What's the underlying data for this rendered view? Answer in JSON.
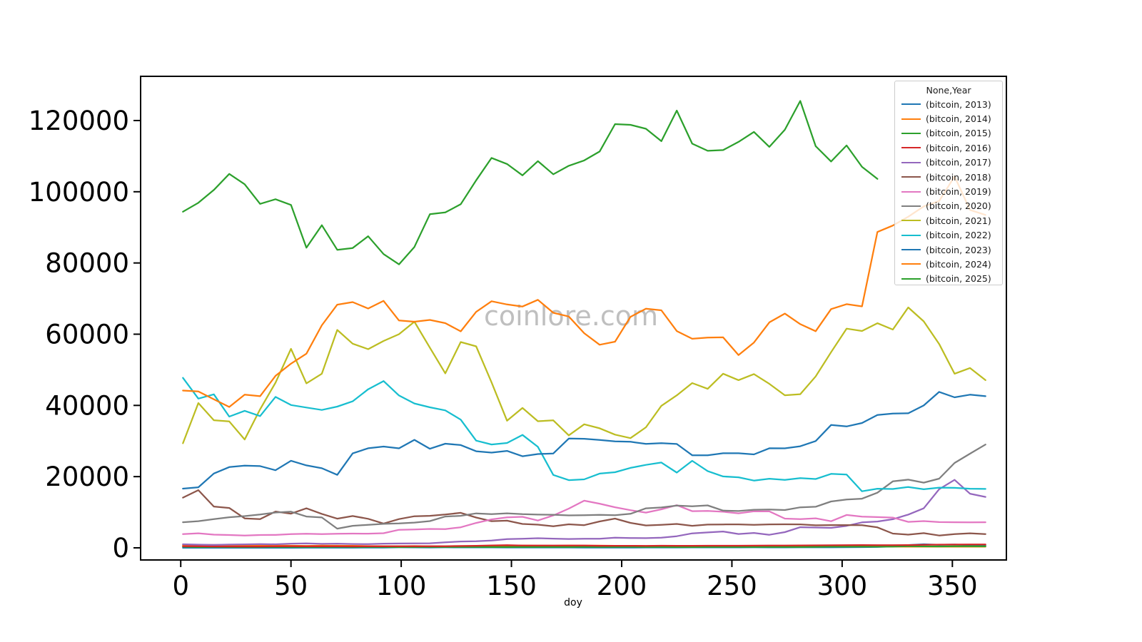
{
  "chart_data": {
    "type": "line",
    "title": "",
    "xlabel": "doy",
    "ylabel": "",
    "watermark": "coinlore.com",
    "legend_title": "None,Year",
    "legend_position": "upper right",
    "grid": false,
    "background": "#ffffff",
    "xlim": [
      -18.2,
      374.5
    ],
    "ylim": [
      -3405,
      132414
    ],
    "xticks": [
      0,
      50,
      100,
      150,
      200,
      250,
      300,
      350
    ],
    "yticks": [
      0,
      20000,
      40000,
      60000,
      80000,
      100000,
      120000
    ],
    "doy_start": 1,
    "doy_step": 7,
    "series": [
      {
        "name": "(bitcoin, 2013)",
        "year": "2013",
        "color": "#1f77b4",
        "values": [
          13,
          14,
          16,
          17,
          19,
          21,
          25,
          30,
          34,
          41,
          47,
          65,
          77,
          90,
          135,
          117,
          105,
          135,
          128,
          117,
          111,
          104,
          100,
          108,
          95,
          98,
          90,
          81,
          76,
          88,
          97,
          103,
          106,
          113,
          120,
          123,
          127,
          133,
          123,
          127,
          134,
          141,
          157,
          183,
          196,
          245,
          380,
          785,
          1005,
          845,
          930,
          745,
          735
        ]
      },
      {
        "name": "(bitcoin, 2014)",
        "year": "2014",
        "color": "#ff7f0e",
        "values": [
          770,
          808,
          830,
          800,
          780,
          820,
          650,
          600,
          565,
          625,
          610,
          585,
          500,
          480,
          450,
          495,
          445,
          430,
          440,
          445,
          580,
          630,
          655,
          600,
          590,
          640,
          620,
          625,
          585,
          590,
          505,
          520,
          470,
          480,
          455,
          410,
          390,
          385,
          345,
          335,
          355,
          380,
          375,
          355,
          380,
          375,
          355,
          330,
          320,
          315,
          320,
          318,
          315
        ]
      },
      {
        "name": "(bitcoin, 2015)",
        "year": "2015",
        "color": "#2ca02c",
        "values": [
          315,
          215,
          255,
          230,
          215,
          240,
          255,
          235,
          255,
          245,
          290,
          260,
          245,
          255,
          225,
          235,
          235,
          240,
          235,
          240,
          230,
          230,
          245,
          250,
          260,
          270,
          285,
          275,
          290,
          275,
          260,
          265,
          230,
          230,
          235,
          235,
          240,
          240,
          245,
          250,
          265,
          285,
          330,
          315,
          360,
          325,
          355,
          455,
          415,
          395,
          440,
          455,
          430
        ]
      },
      {
        "name": "(bitcoin, 2016)",
        "year": "2016",
        "color": "#d62728",
        "values": [
          435,
          450,
          385,
          380,
          375,
          390,
          420,
          435,
          425,
          415,
          415,
          410,
          420,
          430,
          445,
          455,
          450,
          460,
          530,
          585,
          680,
          755,
          670,
          640,
          660,
          655,
          660,
          575,
          585,
          575,
          565,
          610,
          580,
          575,
          610,
          605,
          610,
          615,
          635,
          635,
          680,
          710,
          730,
          745,
          775,
          770,
          765,
          790,
          870,
          900,
          920,
          955,
          963
        ]
      },
      {
        "name": "(bitcoin, 2017)",
        "year": "2017",
        "color": "#9467bd",
        "values": [
          1000,
          910,
          830,
          920,
          985,
          1055,
          1010,
          1180,
          1235,
          1115,
          1180,
          1075,
          1040,
          1190,
          1215,
          1250,
          1290,
          1560,
          1775,
          1850,
          2050,
          2450,
          2550,
          2700,
          2590,
          2480,
          2560,
          2540,
          2870,
          2760,
          2730,
          2840,
          3260,
          4070,
          4330,
          4580,
          3880,
          4190,
          3670,
          4400,
          5780,
          5710,
          5600,
          6170,
          7150,
          7400,
          8040,
          9330,
          11100,
          16470,
          19100,
          15200,
          14300
        ]
      },
      {
        "name": "(bitcoin, 2018)",
        "year": "2018",
        "color": "#8c564b",
        "values": [
          14100,
          16200,
          11600,
          11200,
          8270,
          8070,
          10200,
          9600,
          11100,
          9540,
          8200,
          8930,
          8160,
          6840,
          8070,
          8870,
          8990,
          9350,
          9830,
          8520,
          7500,
          7640,
          6710,
          6510,
          6070,
          6620,
          6380,
          7410,
          8220,
          7020,
          6300,
          6480,
          6710,
          6200,
          6530,
          6580,
          6600,
          6450,
          6600,
          6620,
          6590,
          6340,
          6400,
          6390,
          6370,
          5740,
          4010,
          3700,
          4130,
          3470,
          3840,
          4080,
          3870
        ]
      },
      {
        "name": "(bitcoin, 2019)",
        "year": "2019",
        "color": "#e377c2",
        "values": [
          3840,
          4080,
          3710,
          3600,
          3470,
          3600,
          3620,
          3850,
          3940,
          3860,
          3940,
          4000,
          3990,
          4110,
          5060,
          5170,
          5300,
          5270,
          5770,
          7000,
          7990,
          8560,
          8720,
          7680,
          9090,
          11020,
          13250,
          12400,
          11400,
          10580,
          9900,
          10820,
          11970,
          10300,
          10350,
          10130,
          9700,
          10280,
          10240,
          8220,
          8050,
          8300,
          7470,
          9230,
          8770,
          8640,
          8500,
          7300,
          7520,
          7240,
          7190,
          7160,
          7190
        ]
      },
      {
        "name": "(bitcoin, 2020)",
        "year": "2020",
        "color": "#7f7f7f",
        "values": [
          7190,
          7500,
          8050,
          8600,
          8910,
          9350,
          9920,
          10150,
          8790,
          8540,
          5390,
          6200,
          6470,
          6740,
          6860,
          7100,
          7510,
          8800,
          8990,
          9670,
          9450,
          9700,
          9460,
          9340,
          9290,
          9110,
          9160,
          9250,
          9160,
          9550,
          11100,
          11330,
          11850,
          11650,
          11920,
          10450,
          10340,
          10700,
          10780,
          10620,
          11370,
          11530,
          13020,
          13560,
          13800,
          15480,
          18680,
          19160,
          18320,
          19430,
          23830,
          26440,
          29000
        ]
      },
      {
        "name": "(bitcoin, 2021)",
        "year": "2021",
        "color": "#bcbd22",
        "values": [
          29370,
          40670,
          35830,
          35500,
          30430,
          38900,
          46370,
          55900,
          46200,
          48900,
          61200,
          57330,
          55800,
          58100,
          59990,
          63500,
          56220,
          49000,
          57800,
          56600,
          46450,
          35690,
          39290,
          35550,
          35800,
          31600,
          34700,
          33580,
          31800,
          30820,
          33850,
          39880,
          42820,
          46280,
          44650,
          48900,
          47100,
          48800,
          46060,
          42840,
          43160,
          48140,
          54950,
          61550,
          60890,
          63080,
          61300,
          67500,
          63600,
          57250,
          48900,
          50500,
          47100
        ]
      },
      {
        "name": "(bitcoin, 2022)",
        "year": "2022",
        "color": "#17becf",
        "values": [
          47740,
          41900,
          43100,
          36850,
          38480,
          37000,
          42380,
          40100,
          39400,
          38730,
          39670,
          41140,
          44540,
          46830,
          42780,
          40550,
          39470,
          38600,
          36000,
          30100,
          29030,
          29450,
          31720,
          28360,
          20470,
          19010,
          19240,
          20860,
          21230,
          22460,
          23290,
          23950,
          21140,
          24430,
          21560,
          20050,
          19820,
          18890,
          19420,
          19100,
          19570,
          19330,
          20770,
          20600,
          15880,
          16600,
          16520,
          17090,
          16440,
          16900,
          16840,
          16600,
          16550
        ]
      },
      {
        "name": "(bitcoin, 2023)",
        "year": "2023",
        "color": "#1f77b4",
        "values": [
          16620,
          17000,
          20880,
          22680,
          23080,
          22950,
          21790,
          24450,
          23160,
          22360,
          20500,
          26530,
          27970,
          28450,
          27940,
          30320,
          27820,
          29250,
          28860,
          27120,
          26750,
          27220,
          25730,
          26340,
          26510,
          30690,
          30620,
          30290,
          29910,
          29790,
          29180,
          29410,
          29170,
          26010,
          25990,
          26560,
          26570,
          26250,
          27970,
          27940,
          28520,
          29990,
          34500,
          34090,
          35050,
          37310,
          37720,
          37780,
          39980,
          43790,
          42270,
          43010,
          42580
        ]
      },
      {
        "name": "(bitcoin, 2024)",
        "year": "2024",
        "color": "#ff7f0e",
        "values": [
          44170,
          43940,
          41700,
          39570,
          43010,
          42580,
          48290,
          51730,
          54520,
          62500,
          68300,
          69020,
          67210,
          69360,
          63840,
          63510,
          64000,
          63110,
          60790,
          66270,
          69260,
          68350,
          67760,
          69650,
          66010,
          64960,
          60280,
          57040,
          57900,
          64870,
          67160,
          66700,
          60880,
          58720,
          59030,
          59120,
          54140,
          57650,
          63330,
          65790,
          62820,
          60830,
          67040,
          68430,
          67800,
          88700,
          90500,
          93000,
          95900,
          97400,
          104300,
          94900,
          93500
        ]
      },
      {
        "name": "(bitcoin, 2025)",
        "year": "2025",
        "color": "#2ca02c",
        "values": [
          94400,
          96900,
          100500,
          105000,
          102100,
          96600,
          97900,
          96300,
          84300,
          90600,
          83700,
          84200,
          87500,
          82500,
          79600,
          84500,
          93700,
          94200,
          96500,
          103200,
          109500,
          107800,
          104600,
          108600,
          104900,
          107300,
          108800,
          111300,
          119000,
          118800,
          117700,
          114200,
          122800,
          113500,
          111500,
          111700,
          114000,
          116800,
          112600,
          117400,
          125500,
          112800,
          108500,
          113000,
          107000,
          103600
        ]
      }
    ]
  }
}
